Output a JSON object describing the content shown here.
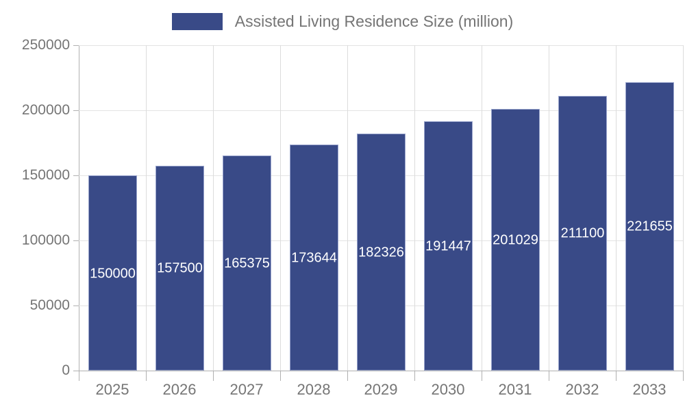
{
  "chart_data": {
    "type": "bar",
    "title": "",
    "legend": {
      "label": "Assisted Living Residence Size (million)",
      "position": "top"
    },
    "categories": [
      "2025",
      "2026",
      "2027",
      "2028",
      "2029",
      "2030",
      "2031",
      "2032",
      "2033"
    ],
    "series": [
      {
        "name": "Assisted Living Residence Size (million)",
        "values": [
          150000,
          157500,
          165375,
          173644,
          182326,
          191447,
          201029,
          211100,
          221655
        ]
      }
    ],
    "data_labels": [
      "150000",
      "157500",
      "165375",
      "173644",
      "182326",
      "191447",
      "201029",
      "211100",
      "221655"
    ],
    "xlabel": "",
    "ylabel": "",
    "ylim": [
      0,
      250000
    ],
    "ytick_step": 50000,
    "ytick_labels": [
      "0",
      "50000",
      "100000",
      "150000",
      "200000",
      "250000"
    ],
    "grid": "on",
    "colors": {
      "bar_fill": "#394a87",
      "bar_border": "#9aa5cd",
      "value_label": "#ffffff",
      "axis_text": "#757575",
      "grid_line": "#e3e3e3",
      "axis_line": "#b0b0b0"
    }
  }
}
